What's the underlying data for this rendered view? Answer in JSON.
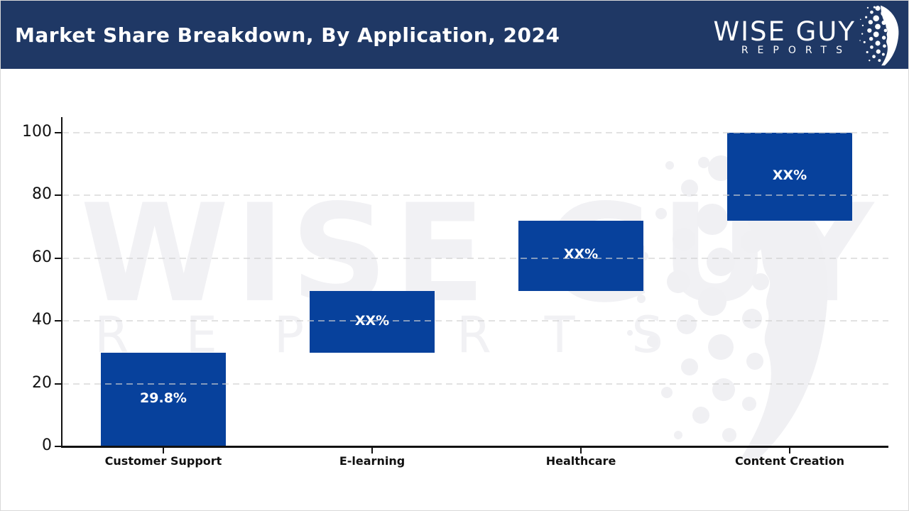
{
  "header": {
    "title": "Market Share Breakdown, By Application, 2024",
    "logo": {
      "line1": "WISE GUY",
      "line2": "REPORTS"
    }
  },
  "watermark": {
    "line1": "WISE GUY",
    "line2": "REPORTS"
  },
  "chart_data": {
    "type": "bar",
    "subtype": "floating-waterfall",
    "title": "Market Share Breakdown, By Application, 2024",
    "categories": [
      "Customer Support",
      "E-learning",
      "Healthcare",
      "Content Creation"
    ],
    "segments": [
      {
        "category": "Customer Support",
        "start": 0,
        "end": 29.8,
        "label": "29.8%"
      },
      {
        "category": "E-learning",
        "start": 29.8,
        "end": 49.6,
        "label": "XX%"
      },
      {
        "category": "Healthcare",
        "start": 49.6,
        "end": 71.9,
        "label": "XX%"
      },
      {
        "category": "Content Creation",
        "start": 71.9,
        "end": 100,
        "label": "XX%"
      }
    ],
    "xlabel": "",
    "ylabel": "",
    "ylim": [
      0,
      105
    ],
    "yticks": [
      0,
      20,
      40,
      60,
      80,
      100
    ],
    "grid": {
      "axis": "y",
      "style": "dashed",
      "color": "#dedede"
    },
    "legend": "none",
    "colors": {
      "bar": "#07419c",
      "bar_label": "#ffffff",
      "axis": "#111111",
      "tick_label": "#111111",
      "category_label": "#111111"
    }
  },
  "colors": {
    "header_bg": "#1f3865",
    "background": "#ffffff",
    "border": "#d9d9d9",
    "watermark": "#f1f1f4"
  }
}
